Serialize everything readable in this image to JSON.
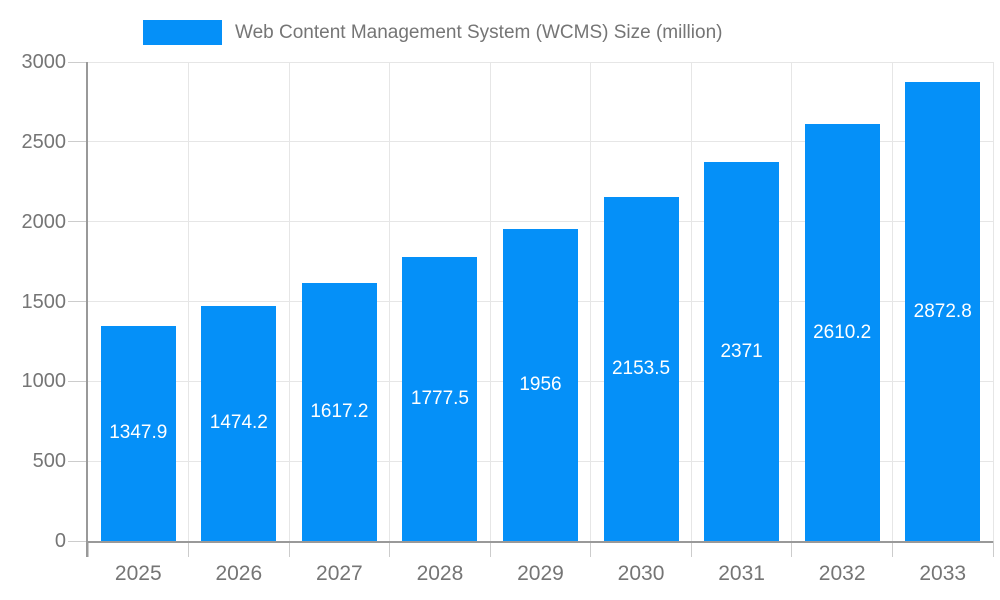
{
  "legend": {
    "label": "Web Content Management System (WCMS) Size (million)"
  },
  "chart_data": {
    "type": "bar",
    "title": "Web Content Management System (WCMS) Size (million)",
    "categories": [
      "2025",
      "2026",
      "2027",
      "2028",
      "2029",
      "2030",
      "2031",
      "2032",
      "2033"
    ],
    "values": [
      1347.9,
      1474.2,
      1617.2,
      1777.5,
      1956,
      2153.5,
      2371,
      2610.2,
      2872.8
    ],
    "value_labels": [
      "1347.9",
      "1474.2",
      "1617.2",
      "1777.5",
      "1956",
      "2153.5",
      "2371",
      "2610.2",
      "2872.8"
    ],
    "xlabel": "",
    "ylabel": "",
    "ylim": [
      0,
      3000
    ],
    "ytick_step": 500,
    "ytick_labels": [
      "0",
      "500",
      "1000",
      "1500",
      "2000",
      "2500",
      "3000"
    ],
    "grid": true,
    "legend_position": "top-left",
    "colors": {
      "bar": "#0590f8",
      "axis": "#999999",
      "grid": "#e6e6e6",
      "tick": "#cccccc",
      "label_text": "#757575",
      "value_text": "#ffffff",
      "background": "#ffffff"
    }
  }
}
